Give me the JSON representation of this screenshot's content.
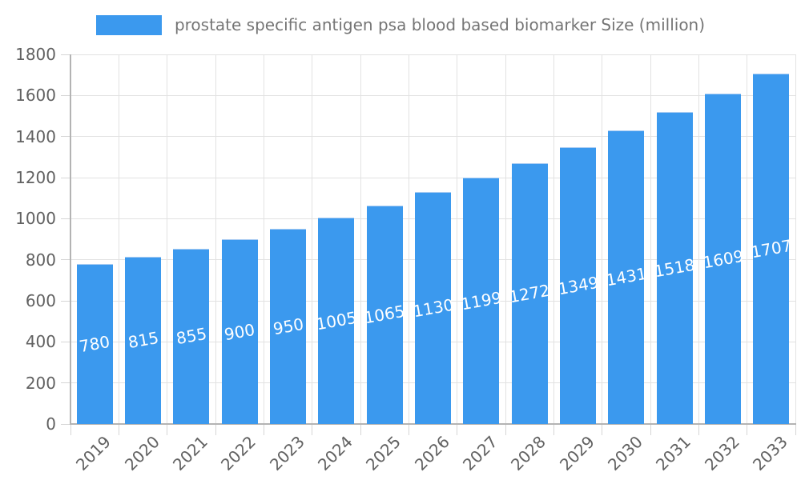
{
  "legend": {
    "label": "prostate specific antigen psa blood based biomarker Size (million)"
  },
  "chart_data": {
    "type": "bar",
    "title": "",
    "xlabel": "",
    "ylabel": "",
    "categories": [
      "2019",
      "2020",
      "2021",
      "2022",
      "2023",
      "2024",
      "2025",
      "2026",
      "2027",
      "2028",
      "2029",
      "2030",
      "2031",
      "2032",
      "2033"
    ],
    "series": [
      {
        "name": "prostate specific antigen psa blood based biomarker Size (million)",
        "values": [
          780,
          815,
          855,
          900,
          950,
          1005,
          1065,
          1130,
          1199,
          1272,
          1349,
          1431,
          1518,
          1609,
          1707
        ]
      }
    ],
    "bar_labels_shown": true,
    "ylim": [
      0,
      1800
    ],
    "yticks": [
      0,
      200,
      400,
      600,
      800,
      1000,
      1200,
      1400,
      1600,
      1800
    ],
    "grid": true,
    "legend_position": "top-center",
    "x_tick_rotation_deg": -45,
    "bar_label_rotation_deg": -10
  },
  "colors": {
    "bar": "#3b99ee",
    "bar_top_edge": "#a9ccf2",
    "bar_label_text": "#ffffff",
    "gridline": "#e2e2e2",
    "axis_line": "#b3b3b3",
    "tick_mark": "#d6d6d6",
    "tick_text": "#616161",
    "legend_text": "#757575",
    "background": "#ffffff"
  }
}
